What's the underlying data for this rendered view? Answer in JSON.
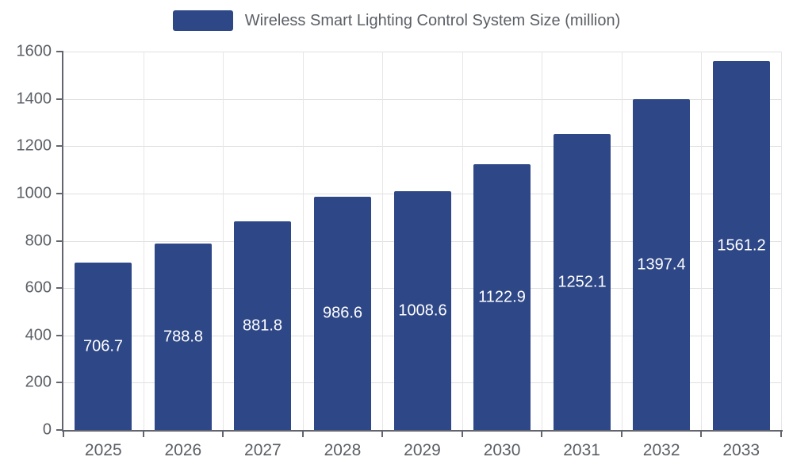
{
  "legend": {
    "label": "Wireless Smart Lighting Control System Size (million)"
  },
  "colors": {
    "bar": "#2E4786",
    "axis": "#62656E",
    "grid": "#E0E0E0",
    "tick_text": "#5B6066",
    "value_label_text": "#FFFFFF"
  },
  "chart_data": {
    "type": "bar",
    "title": "Wireless Smart Lighting Control System Size (million)",
    "categories": [
      "2025",
      "2026",
      "2027",
      "2028",
      "2029",
      "2030",
      "2031",
      "2032",
      "2033"
    ],
    "values": [
      706.7,
      788.8,
      881.8,
      986.6,
      1008.6,
      1122.9,
      1252.1,
      1397.4,
      1561.2
    ],
    "xlabel": "",
    "ylabel": "",
    "ylim": [
      0,
      1600
    ],
    "ytick_step": 200,
    "ytick_labels": [
      "0",
      "200",
      "400",
      "600",
      "800",
      "1000",
      "1200",
      "1400",
      "1600"
    ],
    "grid": true,
    "legend_position": "top",
    "bar_color": "#2E4786",
    "value_labels_shown": true,
    "value_label_position": "inside-middle"
  }
}
